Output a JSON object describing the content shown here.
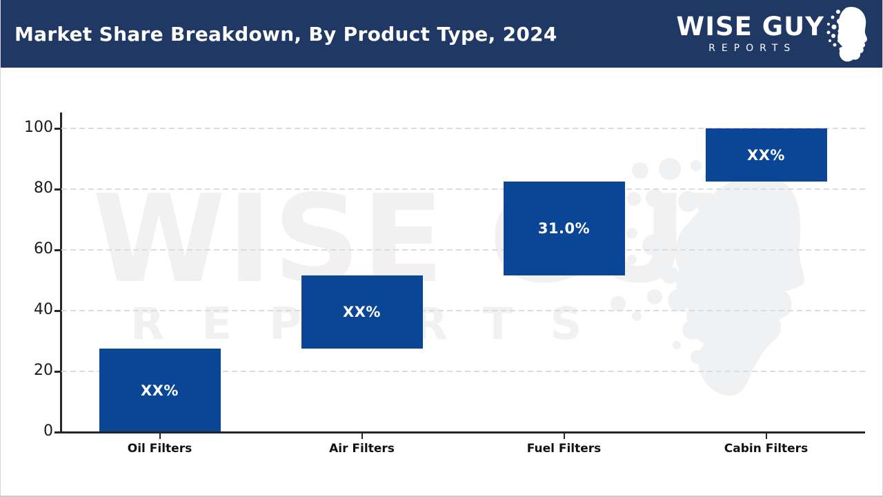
{
  "header": {
    "title": "Market Share Breakdown, By Product Type, 2024",
    "brand": {
      "name": "WISE GUY",
      "subtitle": "REPORTS"
    }
  },
  "watermark": {
    "line1": "WISE GUY",
    "line2": "REPORTS"
  },
  "chart_data": {
    "type": "bar",
    "subtype": "waterfall-floating-bars",
    "title": "Market Share Breakdown, By Product Type, 2024",
    "categories": [
      "Oil Filters",
      "Air Filters",
      "Fuel Filters",
      "Cabin Filters"
    ],
    "segments": [
      {
        "category": "Oil Filters",
        "start": 0,
        "end": 27.5,
        "label": "XX%"
      },
      {
        "category": "Air Filters",
        "start": 27.5,
        "end": 51.5,
        "label": "XX%"
      },
      {
        "category": "Fuel Filters",
        "start": 51.5,
        "end": 82.5,
        "label": "31.0%"
      },
      {
        "category": "Cabin Filters",
        "start": 82.5,
        "end": 100,
        "label": "XX%"
      }
    ],
    "xlabel": "",
    "ylabel": "",
    "ylim": [
      0,
      100
    ],
    "yticks": [
      0,
      20,
      40,
      60,
      80,
      100
    ],
    "grid": "horizontal-dashed",
    "legend": "none",
    "bar_color": "#0b4596",
    "bar_label_color": "#ffffff",
    "axis_color": "#262626",
    "grid_color": "#dcdcdc",
    "header_color": "#1f3864",
    "watermark_color": "#f1f1f1"
  }
}
